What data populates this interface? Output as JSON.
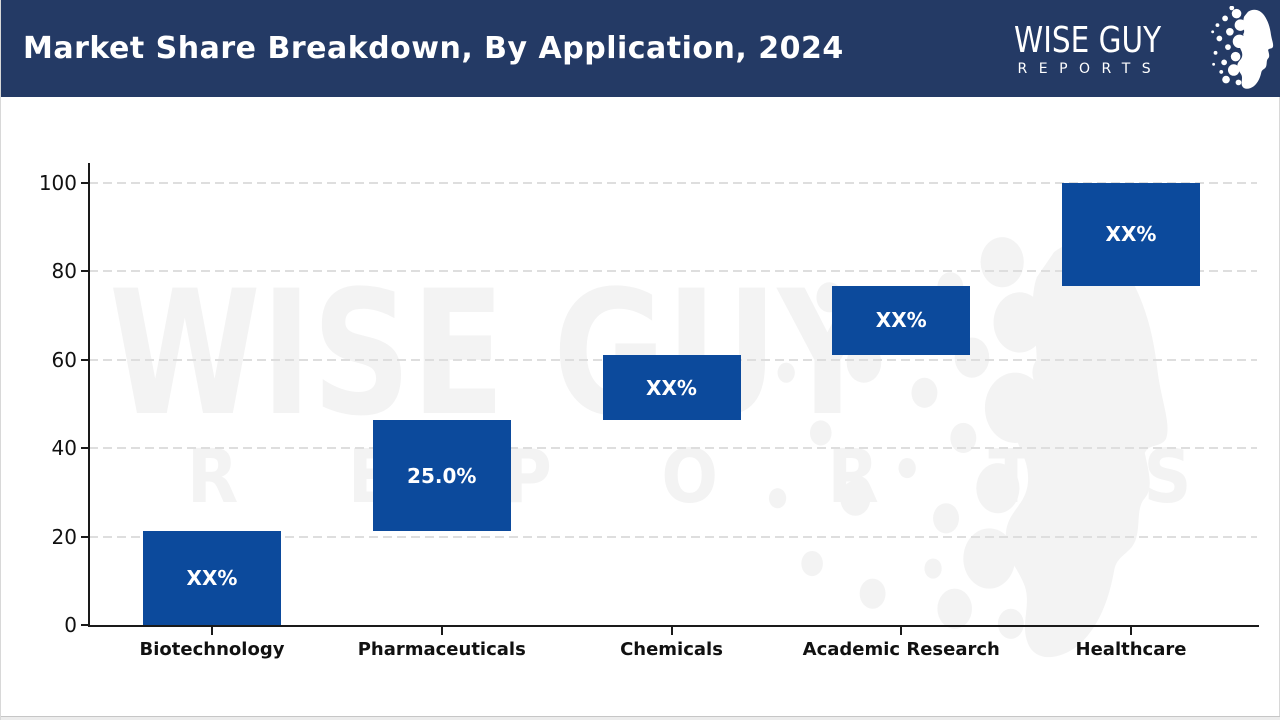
{
  "header": {
    "title": "Market Share Breakdown, By Application, 2024",
    "logo": {
      "name": "WISE GUY",
      "sub": "REPORTS"
    }
  },
  "watermark": {
    "name": "WISE GUY",
    "sub": "R E P O R T S"
  },
  "chart_data": {
    "type": "bar",
    "variant": "floating-waterfall-bars",
    "title": "Market Share Breakdown, By Application, 2024",
    "categories": [
      "Biotechnology",
      "Pharmaceuticals",
      "Chemicals",
      "Academic Research",
      "Healthcare"
    ],
    "segments": [
      {
        "category": "Biotechnology",
        "start": 0,
        "end": 21.3,
        "label": "XX%"
      },
      {
        "category": "Pharmaceuticals",
        "start": 21.3,
        "end": 46.3,
        "label": "25.0%"
      },
      {
        "category": "Chemicals",
        "start": 46.3,
        "end": 61.0,
        "label": "XX%"
      },
      {
        "category": "Academic Research",
        "start": 61.0,
        "end": 76.8,
        "label": "XX%"
      },
      {
        "category": "Healthcare",
        "start": 76.8,
        "end": 100.0,
        "label": "XX%"
      }
    ],
    "yticks": [
      0,
      20,
      40,
      60,
      80,
      100
    ],
    "ylim": [
      0,
      105
    ],
    "xlabel": "",
    "ylabel": "",
    "legend": "none",
    "grid": "horizontal-dashed",
    "bar_color": "#0C4A9C",
    "value_label_color": "#ffffff"
  },
  "colors": {
    "header_bg": "#243A65",
    "bar": "#0C4A9C",
    "gridline": "#dedede",
    "axis": "#1a1a1a",
    "watermark": "#f3f3f3"
  }
}
